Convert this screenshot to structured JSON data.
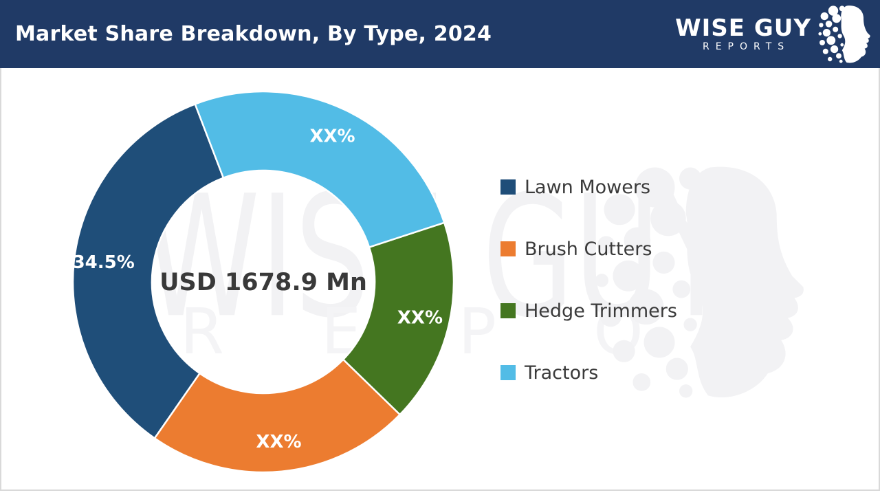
{
  "header": {
    "title": "Market Share Breakdown, By Type, 2024",
    "bg_color": "#203a66",
    "logo": {
      "line1": "WISE GUY",
      "line2": "REPORTS"
    }
  },
  "watermark": {
    "line1": "WISE GUY",
    "line2": "R E P O R T S"
  },
  "chart_data": {
    "type": "pie",
    "subtype": "donut",
    "title": "Market Share Breakdown, By Type, 2024",
    "center_label": "USD 1678.9 Mn",
    "start_angle_deg": 111,
    "direction": "counterclockwise",
    "inner_radius_ratio": 0.585,
    "legend_position": "right",
    "categories": [
      "Lawn Mowers",
      "Brush Cutters",
      "Hedge Trimmers",
      "Tractors"
    ],
    "series": [
      {
        "name": "Lawn Mowers",
        "display_label": "34.5%",
        "value_pct": 34.5,
        "color": "#1f4e79"
      },
      {
        "name": "Brush Cutters",
        "display_label": "XX%",
        "value_pct": 22.4,
        "color": "#ec7c30"
      },
      {
        "name": "Hedge Trimmers",
        "display_label": "XX%",
        "value_pct": 17.3,
        "color": "#447620"
      },
      {
        "name": "Tractors",
        "display_label": "XX%",
        "value_pct": 25.8,
        "color": "#52bce6"
      }
    ]
  },
  "colors": {
    "header_bg": "#203a66",
    "text_dark": "#3a3a3a",
    "border_gray": "#d9d9d9",
    "watermark_gray": "#f2f2f4",
    "white": "#ffffff"
  }
}
